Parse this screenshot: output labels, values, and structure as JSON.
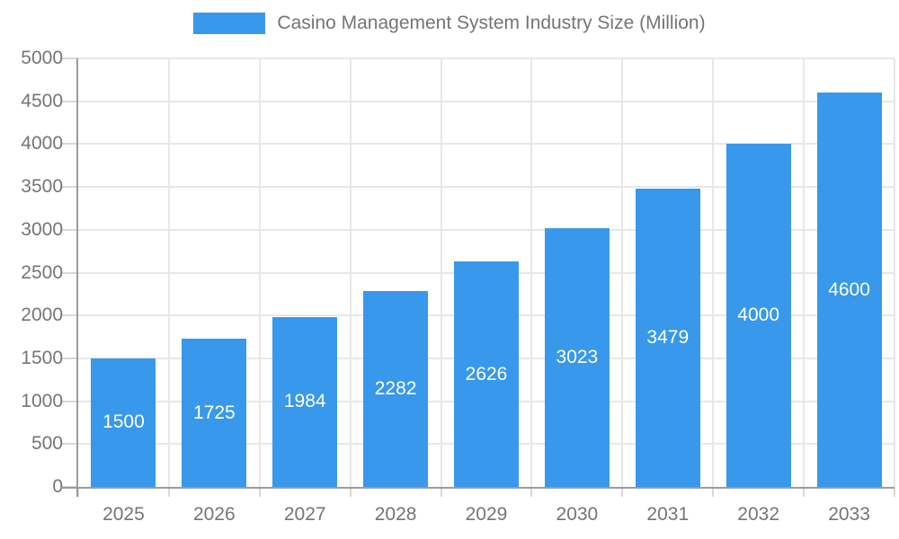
{
  "legend": {
    "label": "Casino Management System Industry Size (Million)"
  },
  "colors": {
    "bar": "#3898EC",
    "bar_label": "#FFFFFF",
    "axis_text": "#757575",
    "grid_line": "#E7E7E7",
    "tick_line": "#D8D8D8",
    "axis_line": "#9B9B9B",
    "background": "#FFFFFF"
  },
  "chart_data": {
    "type": "bar",
    "title": "Casino Management System Industry Size (Million)",
    "categories": [
      "2025",
      "2026",
      "2027",
      "2028",
      "2029",
      "2030",
      "2031",
      "2032",
      "2033"
    ],
    "series": [
      {
        "name": "Casino Management System Industry Size (Million)",
        "values": [
          1500,
          1725,
          1984,
          2282,
          2626,
          3023,
          3479,
          4000,
          4600
        ]
      }
    ],
    "value_labels_shown": true,
    "value_label_position": "center",
    "xlabel": "",
    "ylabel": "",
    "ylim": [
      0,
      5000
    ],
    "yticks": [
      0,
      500,
      1000,
      1500,
      2000,
      2500,
      3000,
      3500,
      4000,
      4500,
      5000
    ],
    "grid": true,
    "legend_position": "top"
  }
}
